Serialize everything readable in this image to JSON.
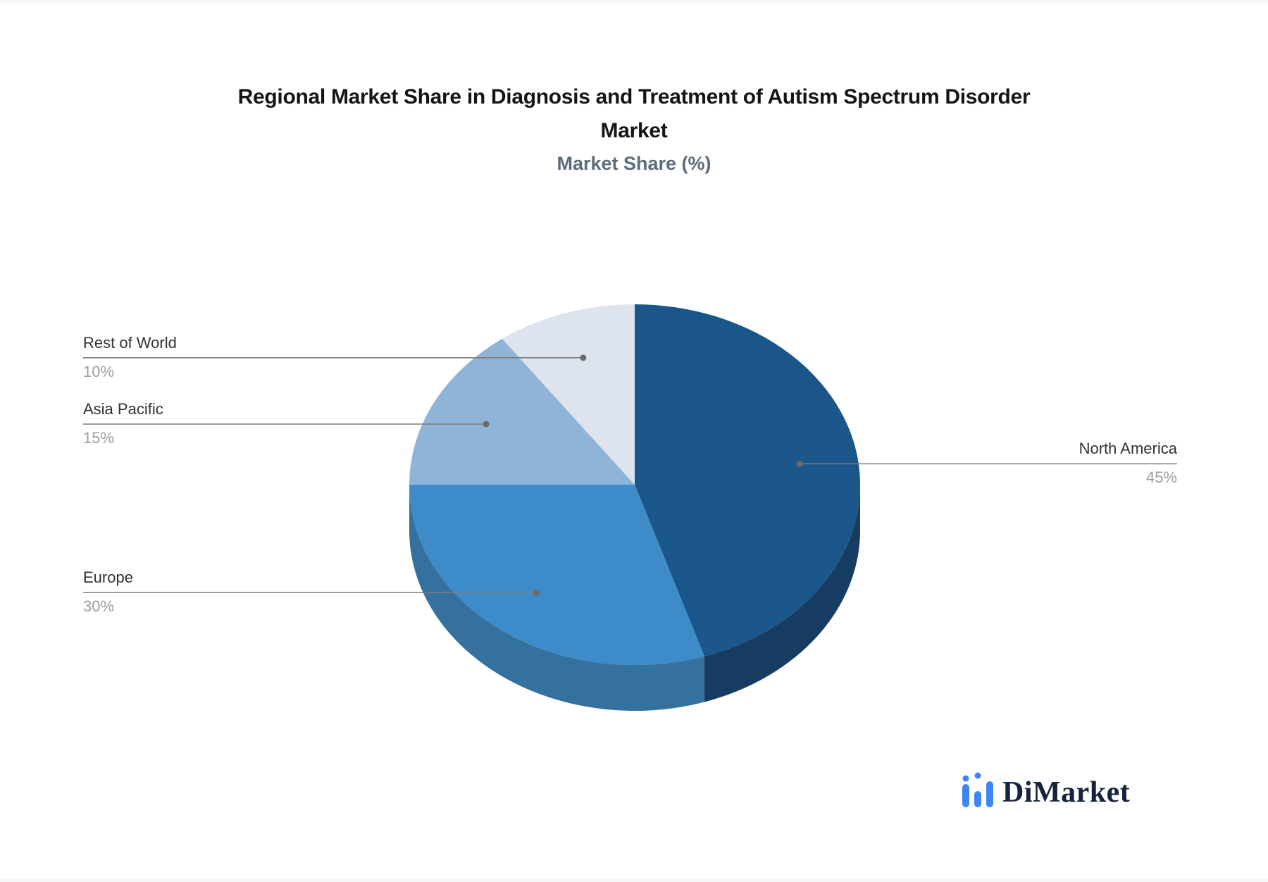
{
  "title_line1": "Regional Market Share in Diagnosis and Treatment of Autism Spectrum Disorder",
  "title_line2": "Market",
  "subtitle": "Market Share (%)",
  "logo": {
    "text": "DiMarket",
    "icon": "bar-chart-logo-icon",
    "icon_color": "#3f86f5",
    "text_color": "#16233c"
  },
  "chart_data": {
    "type": "pie",
    "style": "3d",
    "title": "Regional Market Share in Diagnosis and Treatment of Autism Spectrum Disorder Market",
    "subtitle": "Market Share (%)",
    "unit": "%",
    "categories": [
      "North America",
      "Europe",
      "Asia Pacific",
      "Rest of World"
    ],
    "values": [
      45,
      30,
      15,
      10
    ],
    "value_labels": [
      "45%",
      "30%",
      "15%",
      "10%"
    ],
    "colors": [
      "#1a5689",
      "#3e8bc9",
      "#90b4d8",
      "#dde4ee"
    ],
    "side_colors": [
      "#163d61",
      "#35719e",
      null,
      null
    ],
    "start_angle_deg": 0,
    "direction": "clockwise",
    "legend": "none",
    "labeling": "leader-lines",
    "leader_line_color": "#7d7d7d",
    "leader_dot_color": "#6a6a6a",
    "category_text_color": "#2f3338",
    "value_text_color": "#9b9ea3"
  }
}
